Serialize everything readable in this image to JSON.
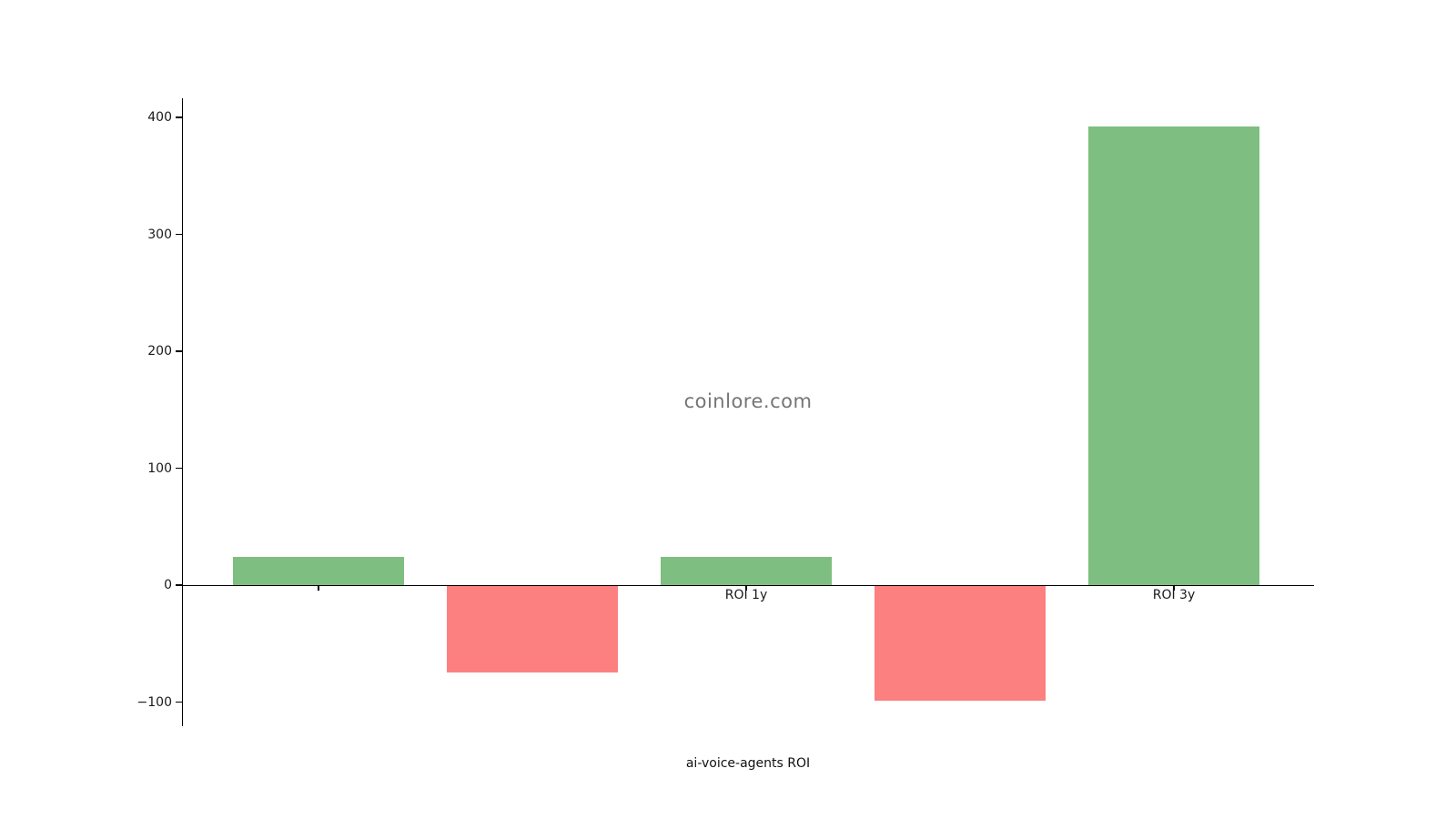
{
  "chart_data": {
    "type": "bar",
    "title": "ai-voice-agents ROI",
    "watermark": "coinlore.com",
    "categories": [
      "",
      "",
      "ROI 1y",
      "",
      "ROI 3y"
    ],
    "category_ticks": [
      true,
      false,
      true,
      false,
      true
    ],
    "values": [
      24,
      -75,
      24,
      -99,
      392
    ],
    "yticks": [
      400,
      300,
      200,
      100,
      0,
      -100
    ],
    "ylim": [
      -120,
      416
    ],
    "xlabel": "ai-voice-agents ROI",
    "ylabel": "",
    "grid": false,
    "legend_position": "none",
    "colors": {
      "positive_bar": "#7ebe80",
      "negative_bar": "#fc8080",
      "axis": "#000000",
      "tick_label": "#1a1a1a",
      "watermark": "#757575"
    }
  }
}
